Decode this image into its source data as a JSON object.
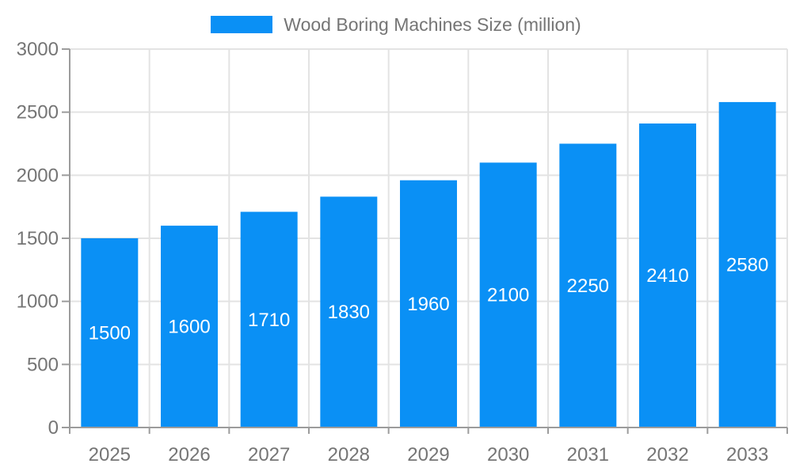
{
  "chart_data": {
    "type": "bar",
    "title": "Wood Boring Machines Size (million)",
    "categories": [
      "2025",
      "2026",
      "2027",
      "2028",
      "2029",
      "2030",
      "2031",
      "2032",
      "2033"
    ],
    "values": [
      1500,
      1600,
      1710,
      1830,
      1960,
      2100,
      2250,
      2410,
      2580
    ],
    "xlabel": "",
    "ylabel": "",
    "ylim": [
      0,
      3000
    ],
    "y_ticks": [
      0,
      500,
      1000,
      1500,
      2000,
      2500,
      3000
    ],
    "legend_position": "top-center",
    "grid": true,
    "value_labels_inside_bars": true,
    "colors": {
      "bar": "#0A90F5",
      "value_label": "#FFFFFF",
      "grid": "#E3E3E3",
      "axis": "#9C9C9C",
      "tick_text": "#757575",
      "legend_text": "#757575",
      "background": "#FFFFFF"
    }
  }
}
